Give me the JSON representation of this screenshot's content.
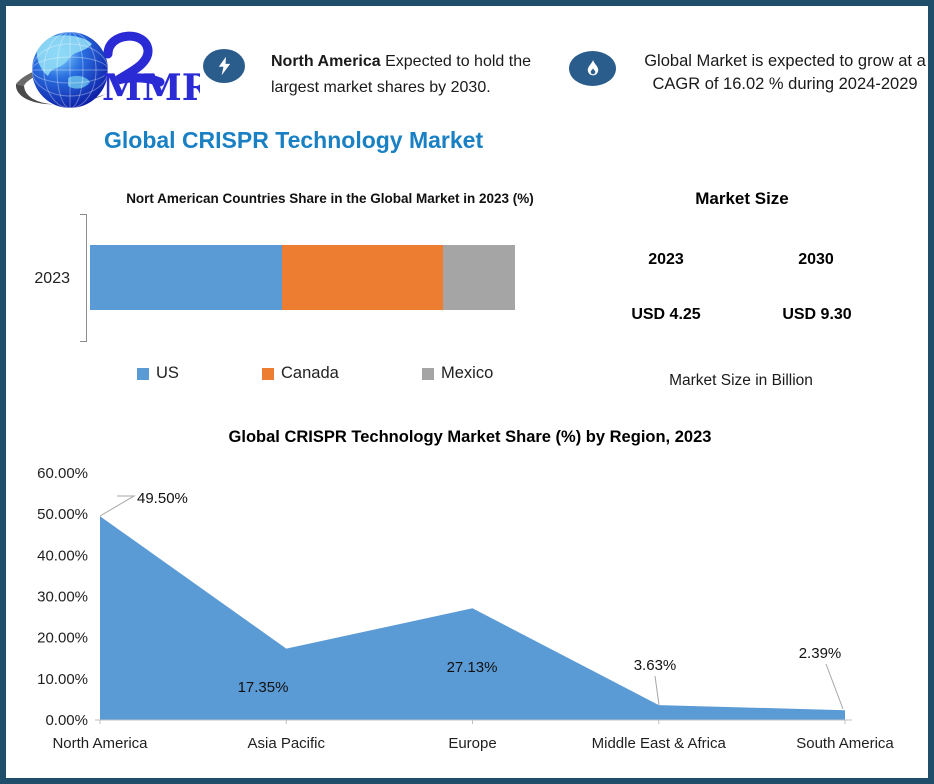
{
  "logo": {
    "text": "MMR"
  },
  "callouts": [
    {
      "icon": "lightning-icon",
      "text_bold": "North America",
      "text_rest": " Expected to hold the largest market shares by 2030."
    },
    {
      "icon": "flame-icon",
      "text": "Global Market is expected to grow at a CAGR of 16.02 % during 2024-2029"
    }
  ],
  "page_title": "Global CRISPR Technology Market",
  "market_size": {
    "title": "Market Size",
    "columns": [
      {
        "year": "2023",
        "value": "USD 4.25"
      },
      {
        "year": "2030",
        "value": "USD 9.30"
      }
    ],
    "note": "Market Size in Billion"
  },
  "colors": {
    "frame_border": "#1F4E6B",
    "icon_ellipse": "#2B5D8C",
    "title_blue": "#1A80C4",
    "axis_gray": "#BFBFBF",
    "leader_gray": "#A6A6A6"
  },
  "chart_data": [
    {
      "type": "bar",
      "subtype": "horizontal-stacked",
      "title": "Nort American Countries Share in the Global Market in 2023 (%)",
      "categories": [
        "2023"
      ],
      "series": [
        {
          "name": "US",
          "color": "#5B9BD5",
          "values": [
            45.2
          ]
        },
        {
          "name": "Canada",
          "color": "#ED7D31",
          "values": [
            37.9
          ]
        },
        {
          "name": "Mexico",
          "color": "#A5A5A5",
          "values": [
            16.9
          ]
        }
      ],
      "legend_position": "bottom",
      "grid": false,
      "note": "segment sizes estimated from bar widths; no numeric labels shown"
    },
    {
      "type": "area",
      "title": "Global CRISPR Technology Market Share (%) by Region, 2023",
      "categories": [
        "North America",
        "Asia Pacific",
        "Europe",
        "Middle East & Africa",
        "South America"
      ],
      "values": [
        49.5,
        17.35,
        27.13,
        3.63,
        2.39
      ],
      "labels": [
        "49.50%",
        "17.35%",
        "27.13%",
        "3.63%",
        "2.39%"
      ],
      "ylim": [
        0,
        60
      ],
      "yticks": [
        "0.00%",
        "10.00%",
        "20.00%",
        "30.00%",
        "40.00%",
        "50.00%",
        "60.00%"
      ],
      "fill_color": "#5B9BD5",
      "xlabel": "",
      "ylabel": "",
      "grid": false,
      "legend_position": "none"
    }
  ]
}
